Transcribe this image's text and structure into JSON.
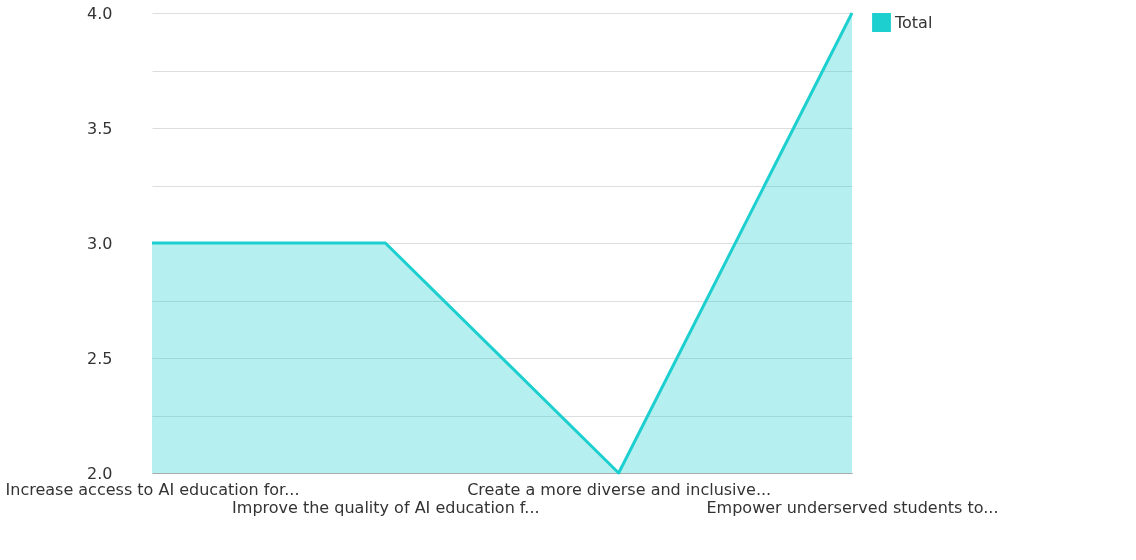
{
  "chart_data": {
    "type": "area",
    "categories": [
      "Increase access to AI education for...",
      "Improve the quality of AI education f...",
      "Create a more diverse and inclusive...",
      "Empower underserved students to..."
    ],
    "series": [
      {
        "name": "Total",
        "color": "#1ecfcf",
        "values": [
          3,
          3,
          2,
          4
        ]
      }
    ],
    "ylim": [
      2,
      4
    ],
    "yticks": [
      {
        "value": 2,
        "label": "2.0"
      },
      {
        "value": 2.25,
        "label": null
      },
      2.5,
      {
        "value": 2.75,
        "label": null
      },
      {
        "value": 3,
        "label": "3.0"
      },
      {
        "value": 3.25,
        "label": null
      },
      3.5,
      {
        "value": 3.75,
        "label": null
      },
      {
        "value": 4,
        "label": "4.0"
      }
    ],
    "grid": "y",
    "legend": "top right"
  }
}
